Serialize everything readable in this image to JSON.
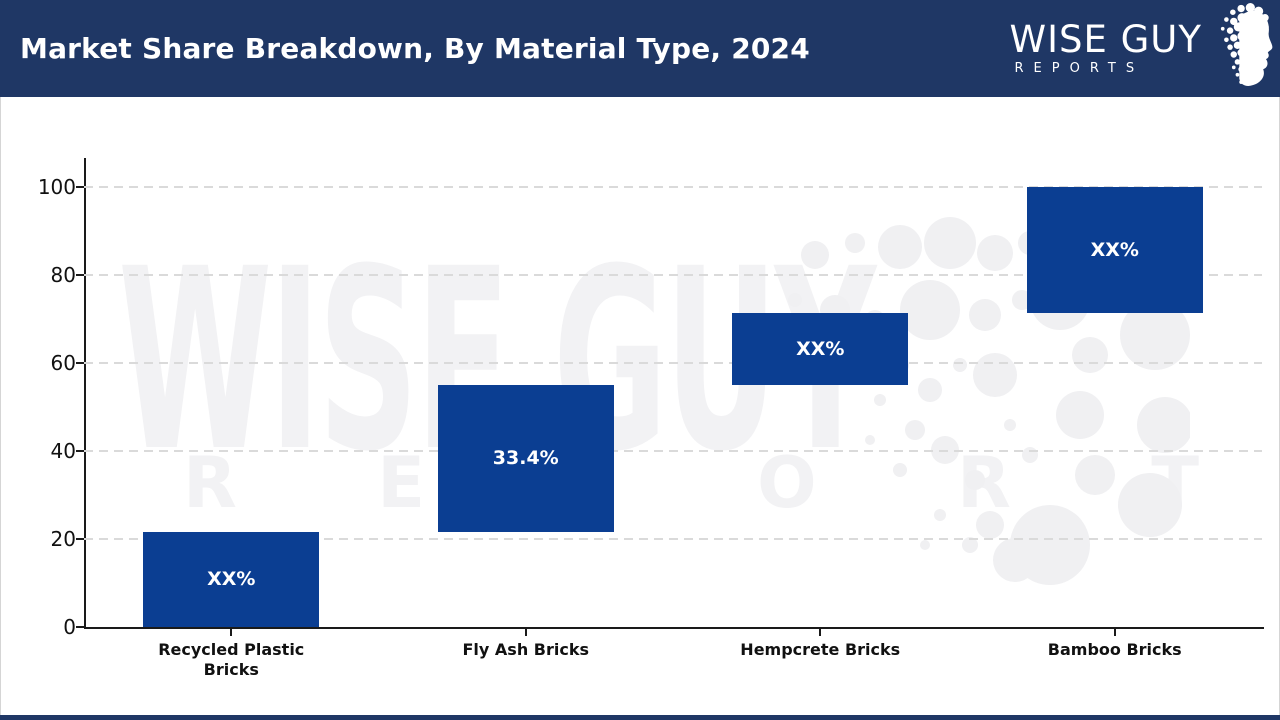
{
  "header": {
    "title": "Market Share Breakdown, By Material Type, 2024",
    "logo": {
      "name": "WISE GUY",
      "reports": "REPORTS"
    }
  },
  "watermark": {
    "line1": "WISE GUY",
    "line2": "R E P O R T S"
  },
  "chart_data": {
    "type": "bar",
    "subtype": "floating-waterfall",
    "title": "Market Share Breakdown, By Material Type, 2024",
    "categories": [
      "Recycled Plastic Bricks",
      "Fly Ash Bricks",
      "Hempcrete Bricks",
      "Bamboo Bricks"
    ],
    "segments": [
      {
        "category": "Recycled Plastic Bricks",
        "start": 0,
        "end": 21.6,
        "label": "XX%"
      },
      {
        "category": "Fly Ash Bricks",
        "start": 21.6,
        "end": 55.0,
        "label": "33.4%"
      },
      {
        "category": "Hempcrete Bricks",
        "start": 55.0,
        "end": 71.4,
        "label": "XX%"
      },
      {
        "category": "Bamboo Bricks",
        "start": 71.4,
        "end": 100,
        "label": "XX%"
      }
    ],
    "yticks": [
      0,
      20,
      40,
      60,
      80,
      100
    ],
    "ylim": [
      0,
      106
    ],
    "xlabel": "",
    "ylabel": "",
    "grid": "horizontal-dashed",
    "legend": "none",
    "bar_color": "#0b3e92",
    "bar_label_color": "#ffffff"
  },
  "colors": {
    "header_bg": "#1f3765",
    "bar": "#0b3e92",
    "grid": "#dadada",
    "axis": "#1a1a1a",
    "watermark": "#f2f2f4"
  }
}
